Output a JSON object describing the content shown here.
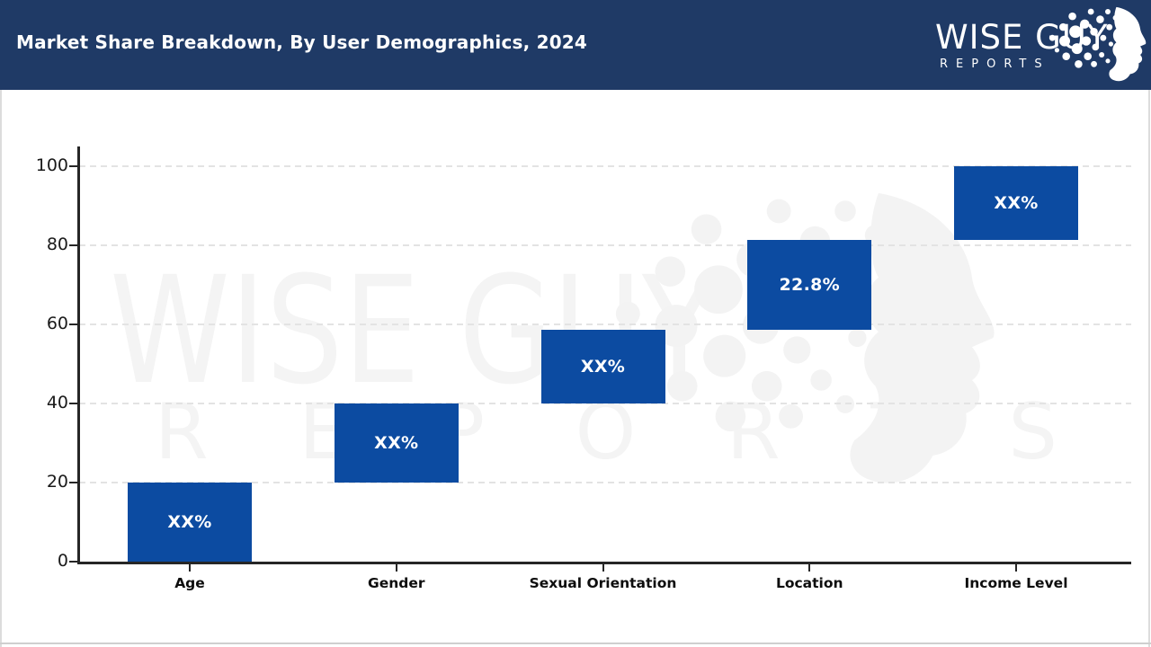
{
  "header": {
    "title": "Market Share Breakdown, By User Demographics, 2024",
    "background_color": "#1F3A66",
    "logo": {
      "line1": "WISE GUY",
      "line2": "REPORTS"
    }
  },
  "watermark": {
    "line1": "WISE GUY",
    "line2": "REPORTS"
  },
  "chart_data": {
    "type": "bar",
    "variant": "waterfall",
    "title": "Market Share Breakdown, By User Demographics, 2024",
    "categories": [
      "Age",
      "Gender",
      "Sexual Orientation",
      "Location",
      "Income Level"
    ],
    "segments": [
      {
        "category": "Age",
        "start": 0,
        "end": 20,
        "label": "XX%"
      },
      {
        "category": "Gender",
        "start": 20,
        "end": 40,
        "label": "XX%"
      },
      {
        "category": "Sexual Orientation",
        "start": 40,
        "end": 58.6,
        "label": "XX%"
      },
      {
        "category": "Location",
        "start": 58.6,
        "end": 81.4,
        "label": "22.8%"
      },
      {
        "category": "Income Level",
        "start": 81.4,
        "end": 100,
        "label": "XX%"
      }
    ],
    "ylim": [
      0,
      100
    ],
    "yticks": [
      0,
      20,
      40,
      60,
      80,
      100
    ],
    "xlabel": "",
    "ylabel": "",
    "grid": "horizontal-dashed",
    "legend": "none",
    "bar_color": "#0C4BA1",
    "bar_label_color": "#ffffff",
    "axis_color": "#262626"
  }
}
